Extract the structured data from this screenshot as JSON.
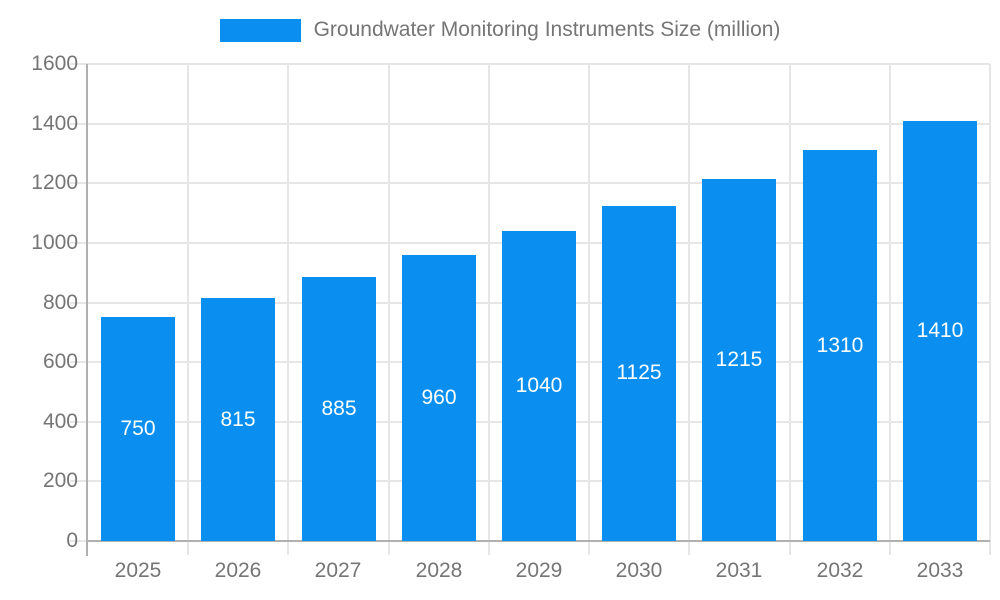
{
  "chart_data": {
    "type": "bar",
    "title": "Groundwater Monitoring Instruments Size (million)",
    "legend_position": "top-center",
    "categories": [
      "2025",
      "2026",
      "2027",
      "2028",
      "2029",
      "2030",
      "2031",
      "2032",
      "2033"
    ],
    "series": [
      {
        "name": "Groundwater Monitoring Instruments Size (million)",
        "values": [
          750,
          815,
          885,
          960,
          1040,
          1125,
          1215,
          1310,
          1410
        ]
      }
    ],
    "value_labels_shown": true,
    "xlabel": "",
    "ylabel": "",
    "ylim": [
      0,
      1600
    ],
    "yticks": [
      0,
      200,
      400,
      600,
      800,
      1000,
      1200,
      1400,
      1600
    ],
    "grid": true,
    "style": {
      "bar_color": "#0a8ff0",
      "value_label_color": "#ffffff",
      "text_color": "#757575",
      "gridline_color": "#e6e6e6",
      "axis_line_color": "#b0b0b0",
      "background_color": "#ffffff"
    }
  }
}
